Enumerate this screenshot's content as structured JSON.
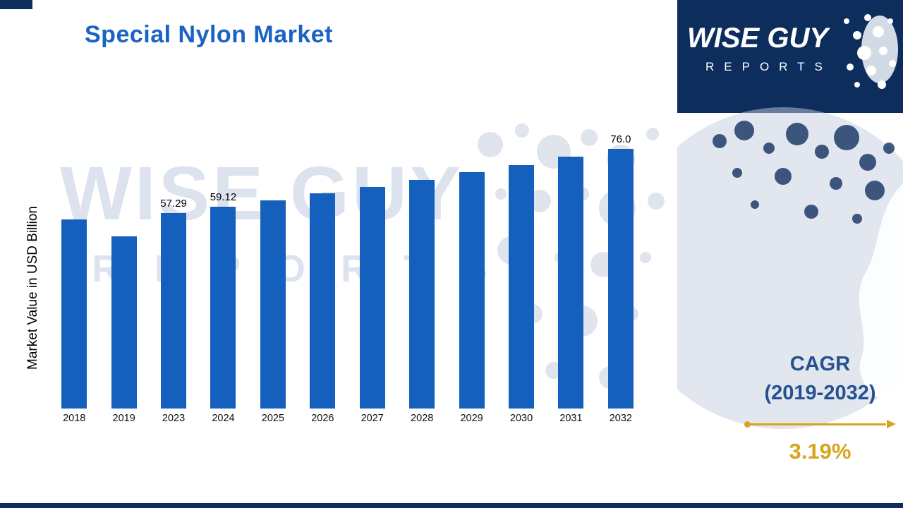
{
  "title": "Special Nylon Market",
  "watermark": {
    "line1": "WISE GUY",
    "line2": "REPORTS"
  },
  "logo": {
    "line1": "WISE GUY",
    "line2": "REPORTS"
  },
  "cagr": {
    "title": "CAGR",
    "range": "(2019-2032)",
    "value": "3.19%"
  },
  "colors": {
    "bar": "#1560bd",
    "navy": "#0d2d5c",
    "gold": "#d7a41c",
    "title_blue": "#1a63c4"
  },
  "chart_data": {
    "type": "bar",
    "title": "Special Nylon Market",
    "xlabel": "",
    "ylabel": "Market Value in USD Billion",
    "categories": [
      "2018",
      "2019",
      "2023",
      "2024",
      "2025",
      "2026",
      "2027",
      "2028",
      "2029",
      "2030",
      "2031",
      "2032"
    ],
    "values": [
      55.3,
      50.5,
      57.29,
      59.12,
      61.0,
      63.0,
      65.0,
      67.0,
      69.2,
      71.4,
      73.7,
      76.0
    ],
    "bar_labels": [
      "",
      "",
      "57.29",
      "59.12",
      "",
      "",
      "",
      "",
      "",
      "",
      "",
      "76.0"
    ],
    "ylim": [
      0,
      80
    ],
    "grid": false,
    "legend": "none",
    "bar_color": "#1560bd"
  }
}
